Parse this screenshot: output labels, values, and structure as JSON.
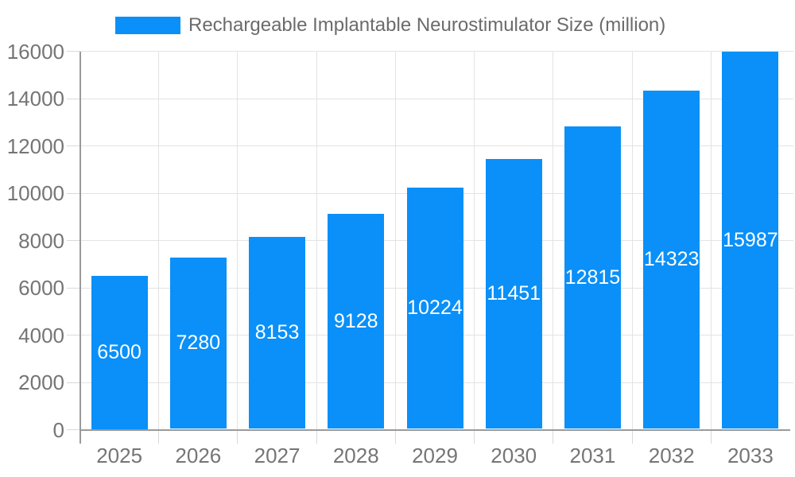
{
  "chart_data": {
    "type": "bar",
    "title": "Rechargeable Implantable Neurostimulator Size (million)",
    "legend": {
      "position": "top",
      "entries": [
        "Rechargeable Implantable Neurostimulator Size (million)"
      ]
    },
    "categories": [
      "2025",
      "2026",
      "2027",
      "2028",
      "2029",
      "2030",
      "2031",
      "2032",
      "2033"
    ],
    "series": [
      {
        "name": "Rechargeable Implantable Neurostimulator Size (million)",
        "values": [
          6500,
          7280,
          8153,
          9128,
          10224,
          11451,
          12815,
          14323,
          15987
        ]
      }
    ],
    "value_labels": [
      "6500",
      "7280",
      "8153",
      "9128",
      "10224",
      "11451",
      "12815",
      "14323",
      "15987"
    ],
    "xlabel": "",
    "ylabel": "",
    "ylim": [
      0,
      16000
    ],
    "yticks": [
      0,
      2000,
      4000,
      6000,
      8000,
      10000,
      12000,
      14000,
      16000
    ],
    "grid": true,
    "colors": {
      "bar": "#0a90f8",
      "value_label_text": "#ffffff",
      "axis_text": "#757575",
      "title_text": "#6b6b6b",
      "gridline": "#e3e3e3",
      "tick": "#d9d9d9",
      "axis_line": "#9a9a9a"
    }
  }
}
